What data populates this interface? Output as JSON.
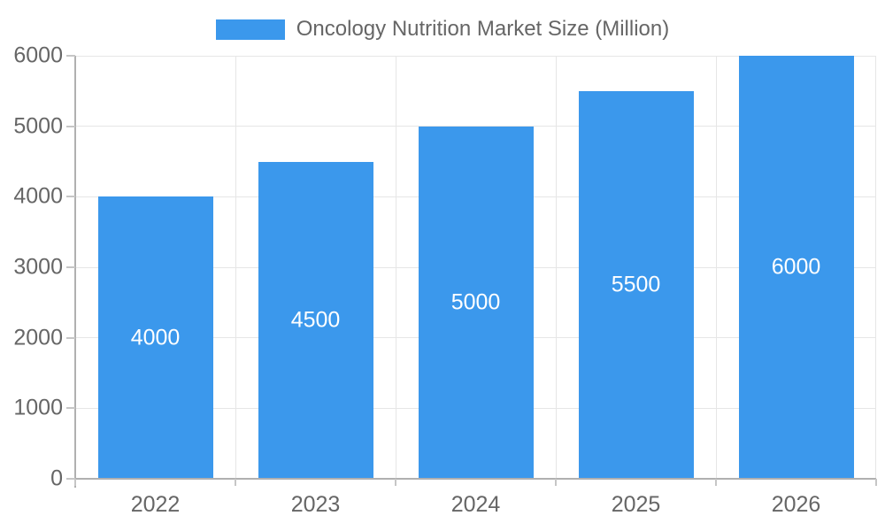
{
  "legend": {
    "label": "Oncology Nutrition Market Size (Million)"
  },
  "chart_data": {
    "type": "bar",
    "title": "Oncology Nutrition Market Size (Million)",
    "categories": [
      "2022",
      "2023",
      "2024",
      "2025",
      "2026"
    ],
    "values": [
      4000,
      4500,
      5000,
      5500,
      6000
    ],
    "series": [
      {
        "name": "Oncology Nutrition Market Size (Million)",
        "values": [
          4000,
          4500,
          5000,
          5500,
          6000
        ]
      }
    ],
    "bar_labels": [
      "4000",
      "4500",
      "5000",
      "5500",
      "6000"
    ],
    "xlabel": "",
    "ylabel": "",
    "ylim": [
      0,
      6000
    ],
    "yticks": [
      0,
      1000,
      2000,
      3000,
      4000,
      5000,
      6000
    ],
    "grid": true,
    "legend_position": "top",
    "colors": {
      "bar": "#3B98EC",
      "grid": "#E6E6E6",
      "axis": "#B0B0B0",
      "tick": "#C6C6C6",
      "text": "#666666",
      "bar_label": "#FFFFFF",
      "background": "#FFFFFF"
    }
  }
}
